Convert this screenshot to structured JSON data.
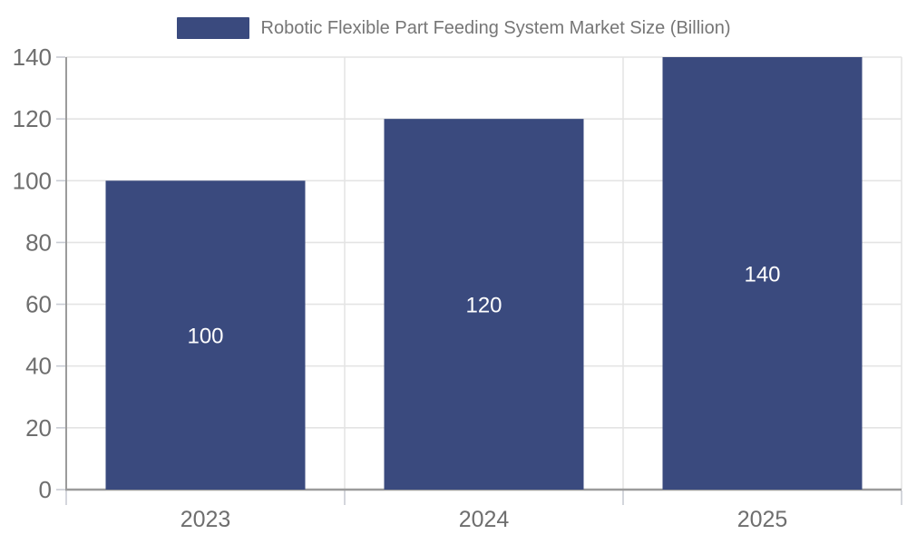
{
  "chart_data": {
    "type": "bar",
    "title": "Robotic Flexible Part Feeding System Market Size (Billion)",
    "categories": [
      "2023",
      "2024",
      "2025"
    ],
    "series": [
      {
        "name": "Robotic Flexible Part Feeding System Market Size (Billion)",
        "values": [
          100,
          120,
          140
        ],
        "data_labels": [
          "100",
          "120",
          "140"
        ]
      }
    ],
    "xlabel": "",
    "ylabel": "",
    "ylim": [
      0,
      140
    ],
    "yticks": [
      0,
      20,
      40,
      60,
      80,
      100,
      120,
      140
    ],
    "ytick_labels": [
      "0",
      "20",
      "40",
      "60",
      "80",
      "100",
      "120",
      "140"
    ],
    "grid": true,
    "legend_position": "top",
    "data_label_position": "inside-center"
  },
  "legend": {
    "label": "Robotic Flexible Part Feeding System Market Size (Billion)",
    "swatch_color": "#3A4A7E"
  },
  "colors": {
    "bar": "#3A4A7E",
    "background": "#FFFFFF",
    "grid": "#E4E4E4",
    "axis": "#9B9B9B",
    "tick": "#C9CCD4",
    "tick_label": "#6E6E6E",
    "legend_text": "#767676",
    "data_label": "#FFFFFF"
  }
}
